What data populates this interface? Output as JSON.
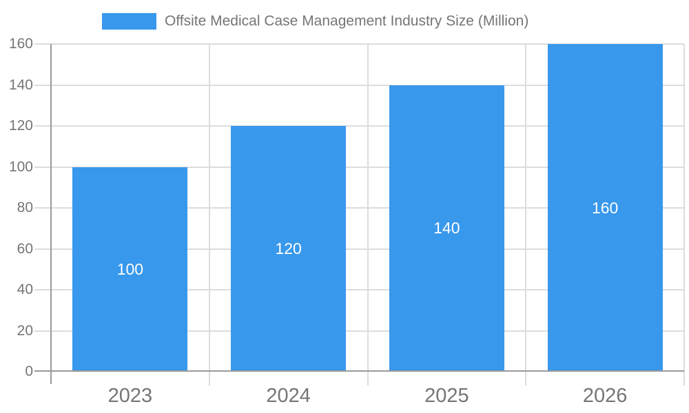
{
  "chart_data": {
    "type": "bar",
    "title": "Offsite Medical Case Management Industry Size (Million)",
    "categories": [
      "2023",
      "2024",
      "2025",
      "2026"
    ],
    "values": [
      100,
      120,
      140,
      160
    ],
    "bar_value_labels": [
      "100",
      "120",
      "140",
      "160"
    ],
    "xlabel": "",
    "ylabel": "",
    "ylim": [
      0,
      160
    ],
    "y_ticks": [
      0,
      20,
      40,
      60,
      80,
      100,
      120,
      140,
      160
    ],
    "grid": true,
    "legend_position": "top",
    "colors": {
      "bar": "#3898ec",
      "grid": "#dcdcdc",
      "axis": "#999999",
      "tick_text": "#757575",
      "title_text": "#757575",
      "bar_label_text": "#ffffff",
      "background": "#ffffff"
    }
  }
}
